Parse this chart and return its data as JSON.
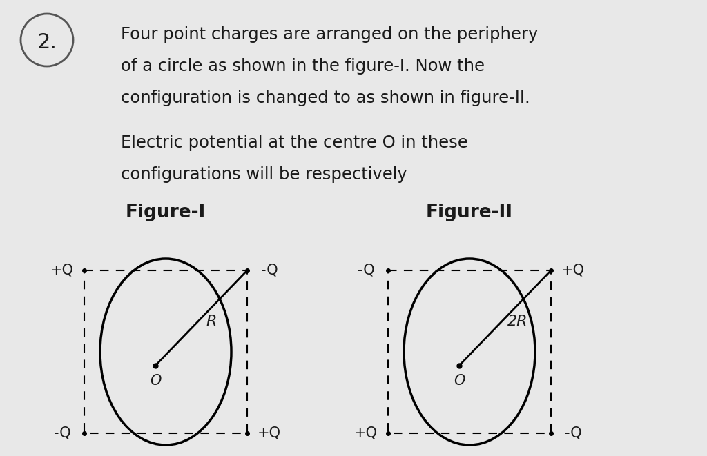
{
  "bg_color": "#e8e8e8",
  "text_color": "#1a1a1a",
  "title_text": "2.",
  "line1": "Four point charges are arranged on the periphery",
  "line2": "of a circle as shown in the figure-I. Now the",
  "line3": "configuration is changed to as shown in figure-II.",
  "line4": "Electric potential at the centre O in these",
  "line5": "configurations will be respectively",
  "fig1_title": "Figure-I",
  "fig2_title": "Figure-II",
  "radius_label1": "R",
  "radius_label2": "2R",
  "center_label": "O",
  "fig1_charges_TL": "+Q",
  "fig1_charges_TR": "-Q",
  "fig1_charges_BL": "-Q",
  "fig1_charges_BR": "+Q",
  "fig2_charges_TL": "-Q",
  "fig2_charges_TR": "+Q",
  "fig2_charges_BL": "+Q",
  "fig2_charges_BR": "-Q"
}
